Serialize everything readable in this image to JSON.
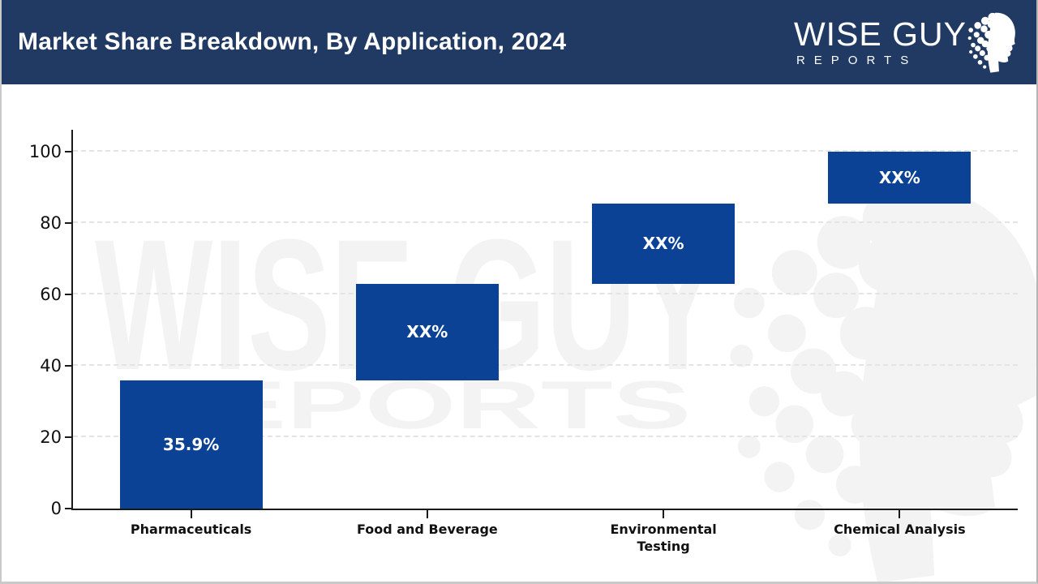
{
  "header": {
    "title": "Market Share Breakdown, By Application, 2024",
    "logo": {
      "line1": "WISE GUY",
      "line2": "REPORTS"
    }
  },
  "watermark": {
    "line1": "WISE GUY",
    "line2": "REPORTS"
  },
  "colors": {
    "header_bg": "#203a64",
    "bar": "#0b4295",
    "bar_label": "#ffffff",
    "gridline": "#e4e4e4",
    "axis": "#1a1a1a",
    "watermark": "#f3f3f3"
  },
  "chart_data": {
    "type": "bar",
    "subtype": "floating-waterfall",
    "title": "Market Share Breakdown, By Application, 2024",
    "categories": [
      "Pharmaceuticals",
      "Food and Beverage",
      "Environmental\nTesting",
      "Chemical Analysis"
    ],
    "segments": [
      {
        "category": "Pharmaceuticals",
        "start": 0,
        "end": 35.9,
        "label": "35.9%"
      },
      {
        "category": "Food and Beverage",
        "start": 35.9,
        "end": 63.0,
        "label": "XX%"
      },
      {
        "category": "Environmental Testing",
        "start": 63.0,
        "end": 85.5,
        "label": "XX%"
      },
      {
        "category": "Chemical Analysis",
        "start": 85.5,
        "end": 100,
        "label": "XX%"
      }
    ],
    "xlabel": "",
    "ylabel": "",
    "ylim": [
      0,
      100
    ],
    "yticks": [
      0,
      20,
      40,
      60,
      80,
      100
    ],
    "grid": "horizontal-dashed",
    "legend": "none"
  }
}
